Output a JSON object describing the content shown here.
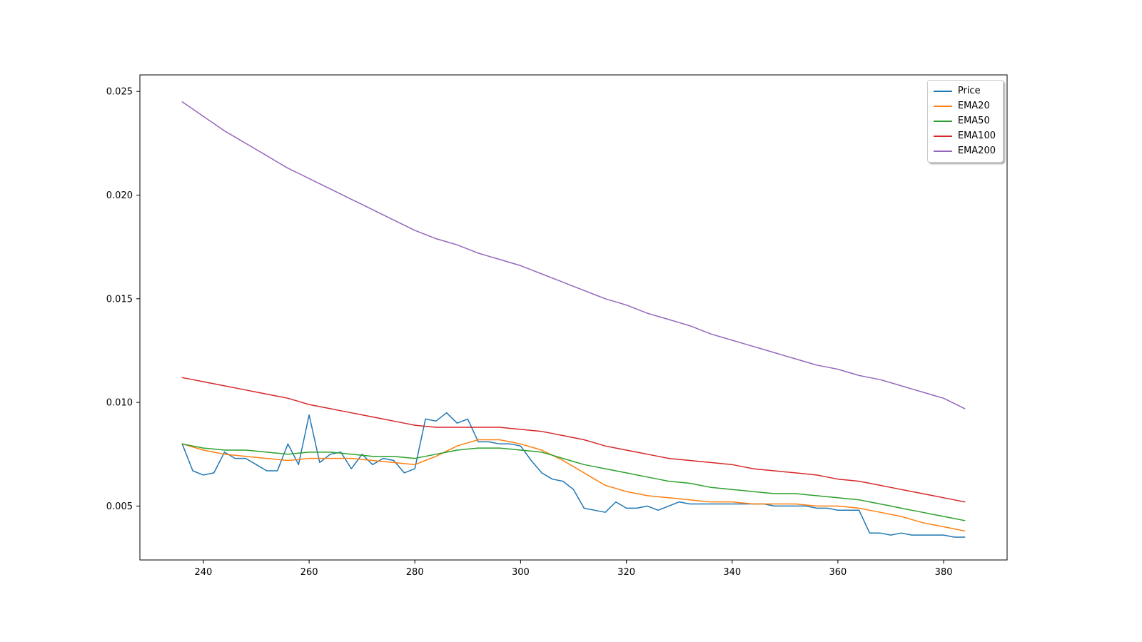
{
  "chart_data": {
    "type": "line",
    "title": "",
    "xlabel": "",
    "ylabel": "",
    "grid": false,
    "legend_position": "upper right",
    "axes": {
      "xlim": [
        228,
        392
      ],
      "ylim": [
        0.0024,
        0.0258
      ],
      "xticks": [
        240,
        260,
        280,
        300,
        320,
        340,
        360,
        380
      ],
      "xtick_labels": [
        "240",
        "260",
        "280",
        "300",
        "320",
        "340",
        "360",
        "380"
      ],
      "yticks": [
        0.005,
        0.01,
        0.015,
        0.02,
        0.025
      ],
      "ytick_labels": [
        "0.005",
        "0.010",
        "0.015",
        "0.020",
        "0.025"
      ]
    },
    "x": [
      236,
      238,
      240,
      242,
      244,
      246,
      248,
      250,
      252,
      254,
      256,
      258,
      260,
      262,
      264,
      266,
      268,
      270,
      272,
      274,
      276,
      278,
      280,
      282,
      284,
      286,
      288,
      290,
      292,
      294,
      296,
      298,
      300,
      302,
      304,
      306,
      308,
      310,
      312,
      314,
      316,
      318,
      320,
      322,
      324,
      326,
      328,
      330,
      332,
      334,
      336,
      338,
      340,
      342,
      344,
      346,
      348,
      350,
      352,
      354,
      356,
      358,
      360,
      362,
      364,
      366,
      368,
      370,
      372,
      374,
      376,
      378,
      380,
      382,
      384
    ],
    "series": [
      {
        "name": "Price",
        "color": "#1f77b4",
        "values": [
          0.008,
          0.0067,
          0.0065,
          0.0066,
          0.0076,
          0.0073,
          0.0073,
          0.007,
          0.0067,
          0.0067,
          0.008,
          0.007,
          0.0094,
          0.0071,
          0.0075,
          0.0076,
          0.0068,
          0.0075,
          0.007,
          0.0073,
          0.0072,
          0.0066,
          0.0068,
          0.0092,
          0.0091,
          0.0095,
          0.009,
          0.0092,
          0.0081,
          0.0081,
          0.008,
          0.008,
          0.0079,
          0.0072,
          0.0066,
          0.0063,
          0.0062,
          0.0058,
          0.0049,
          0.0048,
          0.0047,
          0.0052,
          0.0049,
          0.0049,
          0.005,
          0.0048,
          0.005,
          0.0052,
          0.0051,
          0.0051,
          0.0051,
          0.0051,
          0.0051,
          0.0051,
          0.0051,
          0.0051,
          0.005,
          0.005,
          0.005,
          0.005,
          0.0049,
          0.0049,
          0.0048,
          0.0048,
          0.0048,
          0.0037,
          0.0037,
          0.0036,
          0.0037,
          0.0036,
          0.0036,
          0.0036,
          0.0036,
          0.0035,
          0.0035
        ]
      },
      {
        "name": "EMA20",
        "color": "#ff7f0e",
        "values": [
          0.008,
          0.00785,
          0.0077,
          0.0076,
          0.0075,
          0.00745,
          0.0074,
          0.00735,
          0.0073,
          0.00725,
          0.0072,
          0.00725,
          0.0073,
          0.0073,
          0.0073,
          0.0073,
          0.0073,
          0.00725,
          0.0072,
          0.00715,
          0.0071,
          0.00705,
          0.007,
          0.0072,
          0.0074,
          0.00765,
          0.0079,
          0.00805,
          0.0082,
          0.0082,
          0.0082,
          0.0081,
          0.008,
          0.00785,
          0.0077,
          0.00745,
          0.0072,
          0.0069,
          0.0066,
          0.0063,
          0.006,
          0.00585,
          0.0057,
          0.0056,
          0.0055,
          0.00545,
          0.0054,
          0.00535,
          0.0053,
          0.00525,
          0.0052,
          0.0052,
          0.0052,
          0.00515,
          0.0051,
          0.0051,
          0.0051,
          0.0051,
          0.0051,
          0.00505,
          0.005,
          0.005,
          0.005,
          0.00495,
          0.0049,
          0.0048,
          0.0047,
          0.0046,
          0.0045,
          0.00435,
          0.0042,
          0.0041,
          0.004,
          0.0039,
          0.0038
        ]
      },
      {
        "name": "EMA50",
        "color": "#2ca02c",
        "values": [
          0.008,
          0.0079,
          0.0078,
          0.00775,
          0.0077,
          0.0077,
          0.0077,
          0.00765,
          0.0076,
          0.00755,
          0.0075,
          0.00755,
          0.0076,
          0.0076,
          0.0076,
          0.00755,
          0.0075,
          0.00745,
          0.0074,
          0.0074,
          0.0074,
          0.00735,
          0.0073,
          0.0074,
          0.0075,
          0.0076,
          0.0077,
          0.00775,
          0.0078,
          0.0078,
          0.0078,
          0.00775,
          0.0077,
          0.00765,
          0.0076,
          0.00745,
          0.0073,
          0.00715,
          0.007,
          0.0069,
          0.0068,
          0.0067,
          0.0066,
          0.0065,
          0.0064,
          0.0063,
          0.0062,
          0.00615,
          0.0061,
          0.006,
          0.0059,
          0.00585,
          0.0058,
          0.00575,
          0.0057,
          0.00565,
          0.0056,
          0.0056,
          0.0056,
          0.00555,
          0.0055,
          0.00545,
          0.0054,
          0.00535,
          0.0053,
          0.0052,
          0.0051,
          0.005,
          0.0049,
          0.0048,
          0.0047,
          0.0046,
          0.0045,
          0.0044,
          0.0043
        ]
      },
      {
        "name": "EMA100",
        "color": "#d62728",
        "values": [
          0.0112,
          0.0111,
          0.011,
          0.0109,
          0.0108,
          0.0107,
          0.0106,
          0.0105,
          0.0104,
          0.0103,
          0.0102,
          0.01005,
          0.0099,
          0.0098,
          0.0097,
          0.0096,
          0.0095,
          0.0094,
          0.0093,
          0.0092,
          0.0091,
          0.009,
          0.0089,
          0.00885,
          0.0088,
          0.0088,
          0.0088,
          0.0088,
          0.0088,
          0.0088,
          0.0088,
          0.00875,
          0.0087,
          0.00865,
          0.0086,
          0.0085,
          0.0084,
          0.0083,
          0.0082,
          0.00805,
          0.0079,
          0.0078,
          0.0077,
          0.0076,
          0.0075,
          0.0074,
          0.0073,
          0.00725,
          0.0072,
          0.00715,
          0.0071,
          0.00705,
          0.007,
          0.0069,
          0.0068,
          0.00675,
          0.0067,
          0.00665,
          0.0066,
          0.00655,
          0.0065,
          0.0064,
          0.0063,
          0.00625,
          0.0062,
          0.0061,
          0.006,
          0.0059,
          0.0058,
          0.0057,
          0.0056,
          0.0055,
          0.0054,
          0.0053,
          0.0052
        ]
      },
      {
        "name": "EMA200",
        "color": "#9467bd",
        "values": [
          0.0245,
          0.02415,
          0.0238,
          0.02345,
          0.0231,
          0.0228,
          0.0225,
          0.0222,
          0.0219,
          0.0216,
          0.0213,
          0.02105,
          0.0208,
          0.02055,
          0.0203,
          0.02005,
          0.0198,
          0.01955,
          0.0193,
          0.01905,
          0.0188,
          0.01855,
          0.0183,
          0.0181,
          0.0179,
          0.01775,
          0.0176,
          0.0174,
          0.0172,
          0.01705,
          0.0169,
          0.01675,
          0.0166,
          0.0164,
          0.0162,
          0.016,
          0.0158,
          0.0156,
          0.0154,
          0.0152,
          0.015,
          0.01485,
          0.0147,
          0.0145,
          0.0143,
          0.01415,
          0.014,
          0.01385,
          0.0137,
          0.0135,
          0.0133,
          0.01315,
          0.013,
          0.01285,
          0.0127,
          0.01255,
          0.0124,
          0.01225,
          0.0121,
          0.01195,
          0.0118,
          0.0117,
          0.0116,
          0.01145,
          0.0113,
          0.0112,
          0.0111,
          0.01095,
          0.0108,
          0.01065,
          0.0105,
          0.01035,
          0.0102,
          0.00995,
          0.0097
        ]
      }
    ]
  }
}
